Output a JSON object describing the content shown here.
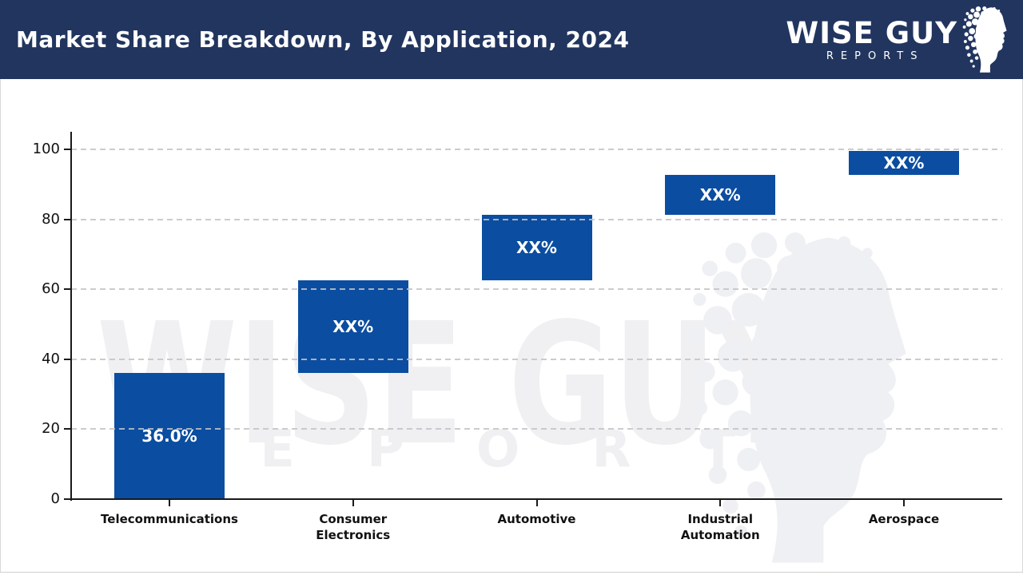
{
  "header": {
    "title": "Market Share Breakdown, By Application, 2024",
    "bg_color": "#21355f",
    "logo": {
      "line1": "WISE GUY",
      "line2": "REPORTS"
    }
  },
  "watermark": {
    "line1": "WISE GUY",
    "line2": "REPORTS"
  },
  "chart_data": {
    "type": "bar",
    "subtype": "waterfall",
    "title": "Market Share Breakdown, By Application, 2024",
    "categories": [
      "Telecommunications",
      "Consumer\nElectronics",
      "Automotive",
      "Industrial\nAutomation",
      "Aerospace"
    ],
    "segments": [
      {
        "category": "Telecommunications",
        "start": 0,
        "end": 36,
        "label": "36.0%"
      },
      {
        "category": "Consumer Electronics",
        "start": 36,
        "end": 62.5,
        "label": "XX%"
      },
      {
        "category": "Automotive",
        "start": 62.5,
        "end": 81.3,
        "label": "XX%"
      },
      {
        "category": "Industrial Automation",
        "start": 81.3,
        "end": 92.7,
        "label": "XX%"
      },
      {
        "category": "Aerospace",
        "start": 92.7,
        "end": 99.5,
        "label": "XX%"
      }
    ],
    "yticks": [
      0,
      20,
      40,
      60,
      80,
      100
    ],
    "ylim": [
      0,
      105
    ],
    "xlabel": "",
    "ylabel": "",
    "bar_color": "#0b4da0",
    "grid": "horizontal dashed, drawn above bars",
    "legend": "none"
  }
}
